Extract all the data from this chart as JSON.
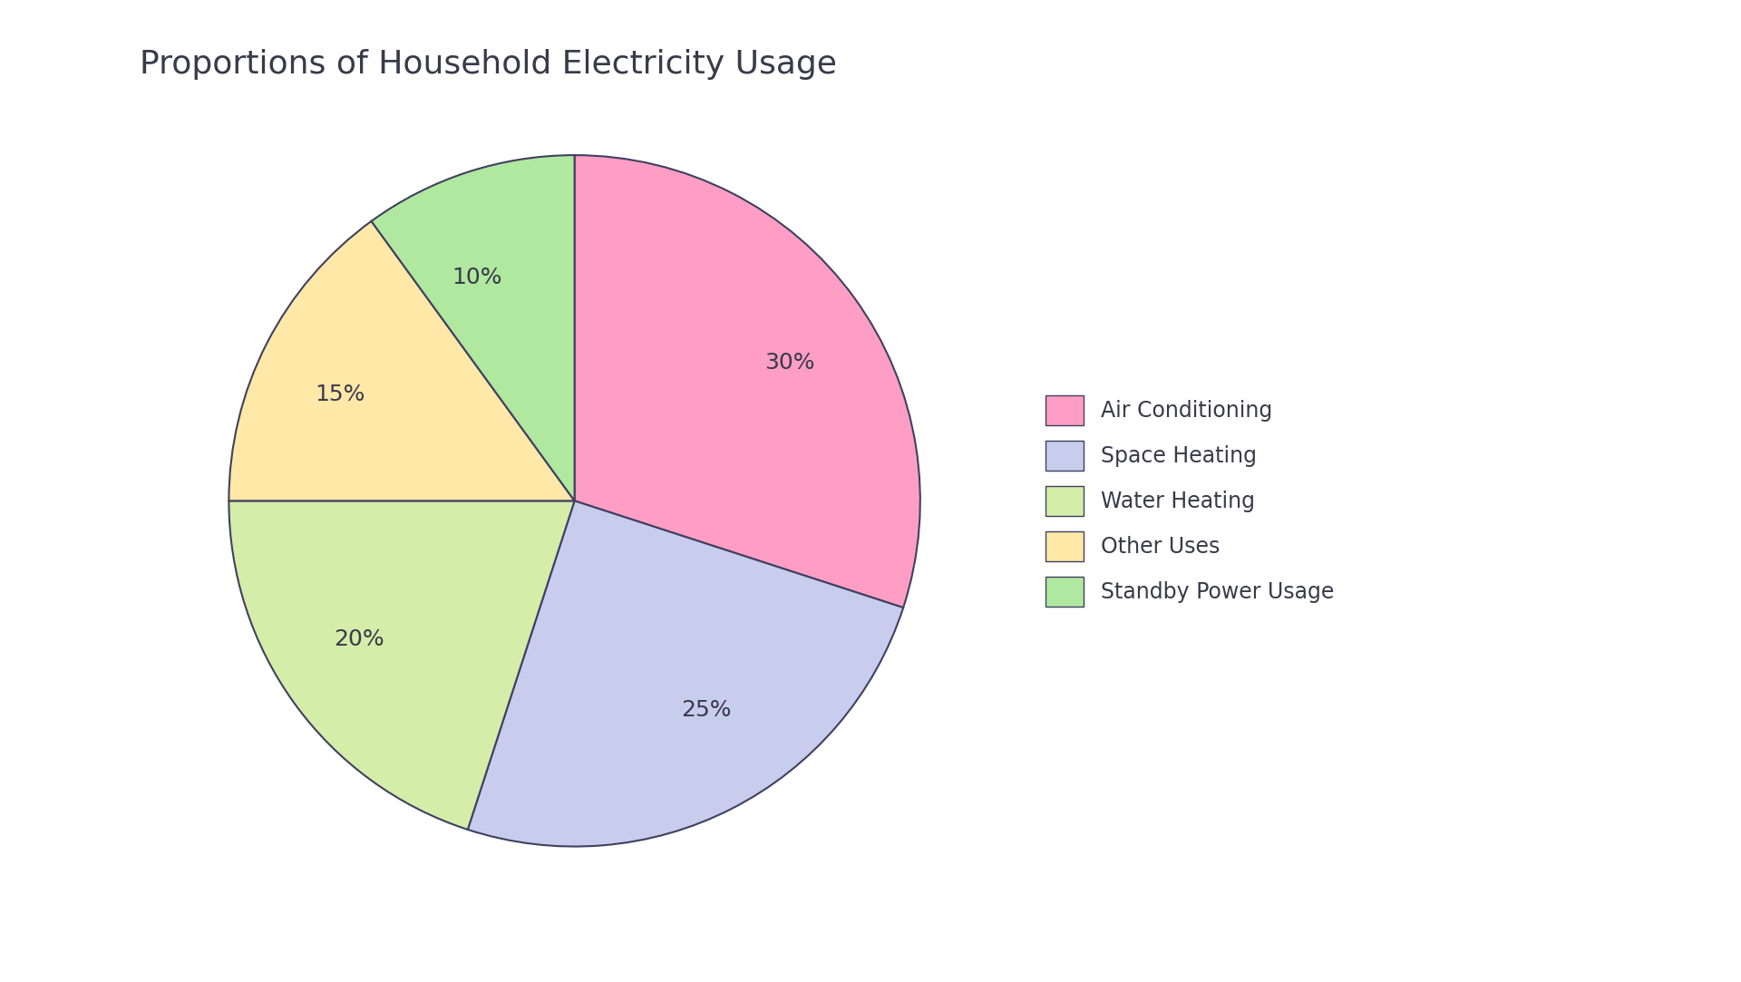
{
  "title": "Proportions of Household Electricity Usage",
  "categories": [
    "Air Conditioning",
    "Space Heating",
    "Water Heating",
    "Other Uses",
    "Standby Power Usage"
  ],
  "values": [
    30,
    25,
    20,
    15,
    10
  ],
  "colors": [
    "#FF9EC5",
    "#C8CDEE",
    "#D4EDA8",
    "#FFE8A8",
    "#B0E8A0"
  ],
  "labels": [
    "30%",
    "25%",
    "20%",
    "15%",
    "10%"
  ],
  "start_angle": 90,
  "edge_color": "#404060",
  "edge_linewidth": 1.5,
  "background_color": "#ffffff",
  "title_fontsize": 26,
  "label_fontsize": 18,
  "legend_fontsize": 17,
  "text_color": "#3a3a4a"
}
